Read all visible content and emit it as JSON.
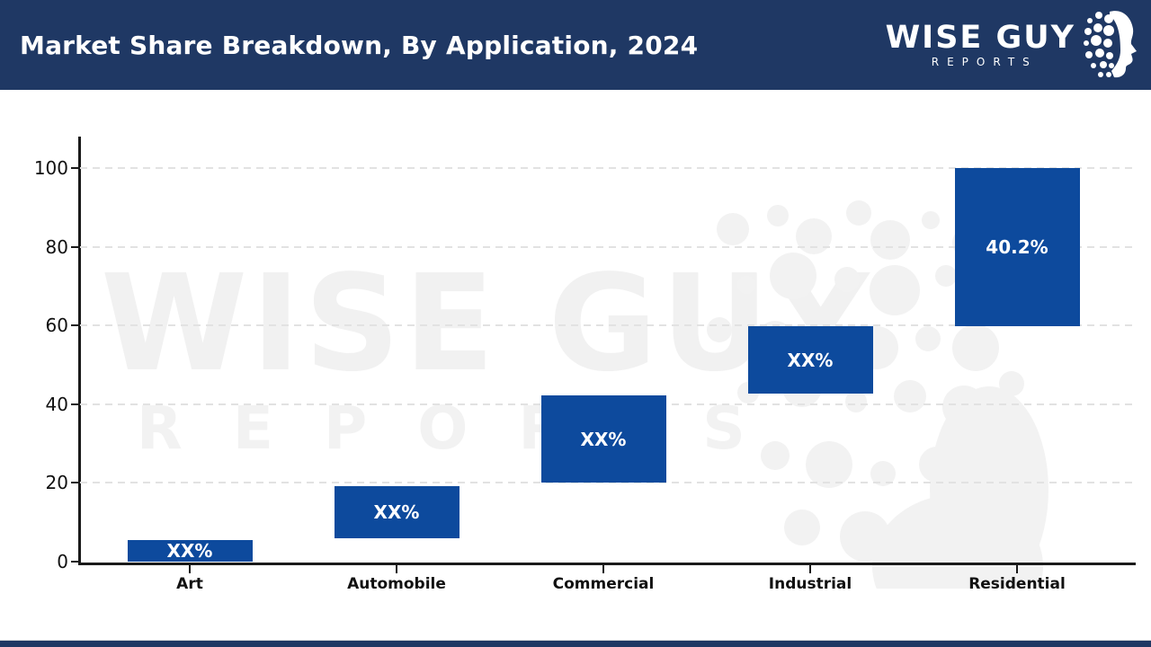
{
  "header": {
    "title": "Market Share Breakdown, By Application, 2024",
    "bg_color": "#1f3864",
    "logo": {
      "line1": "WISE GUY",
      "line2": "REPORTS",
      "icon": "dotted-head-profile-icon"
    }
  },
  "watermark": {
    "line1": "WISE GUY",
    "line2": "REPORTS",
    "icon": "dotted-head-profile-icon"
  },
  "chart_data": {
    "type": "bar",
    "subtype": "floating-waterfall",
    "title": "Market Share Breakdown, By Application, 2024",
    "units": "%",
    "categories": [
      "Art",
      "Automobile",
      "Commercial",
      "Industrial",
      "Residential"
    ],
    "segments": [
      {
        "category": "Art",
        "start": 0,
        "end": 5.5,
        "label": "XX%"
      },
      {
        "category": "Automobile",
        "start": 5.9,
        "end": 19.2,
        "label": "XX%"
      },
      {
        "category": "Commercial",
        "start": 20,
        "end": 42.3,
        "label": "XX%"
      },
      {
        "category": "Industrial",
        "start": 42.7,
        "end": 59.8,
        "label": "XX%"
      },
      {
        "category": "Residential",
        "start": 59.9,
        "end": 100,
        "label": "40.2%"
      }
    ],
    "yticks": [
      0,
      20,
      40,
      60,
      80,
      100
    ],
    "ylim": [
      0,
      108
    ],
    "xlabel": "",
    "ylabel": "",
    "grid": "dashed-horizontal",
    "legend": "none",
    "bar_color": "#0d4a9d",
    "bar_label_color": "#ffffff",
    "axis_color": "#1a1a1a"
  },
  "footer": {
    "bg_color": "#1f3864"
  }
}
